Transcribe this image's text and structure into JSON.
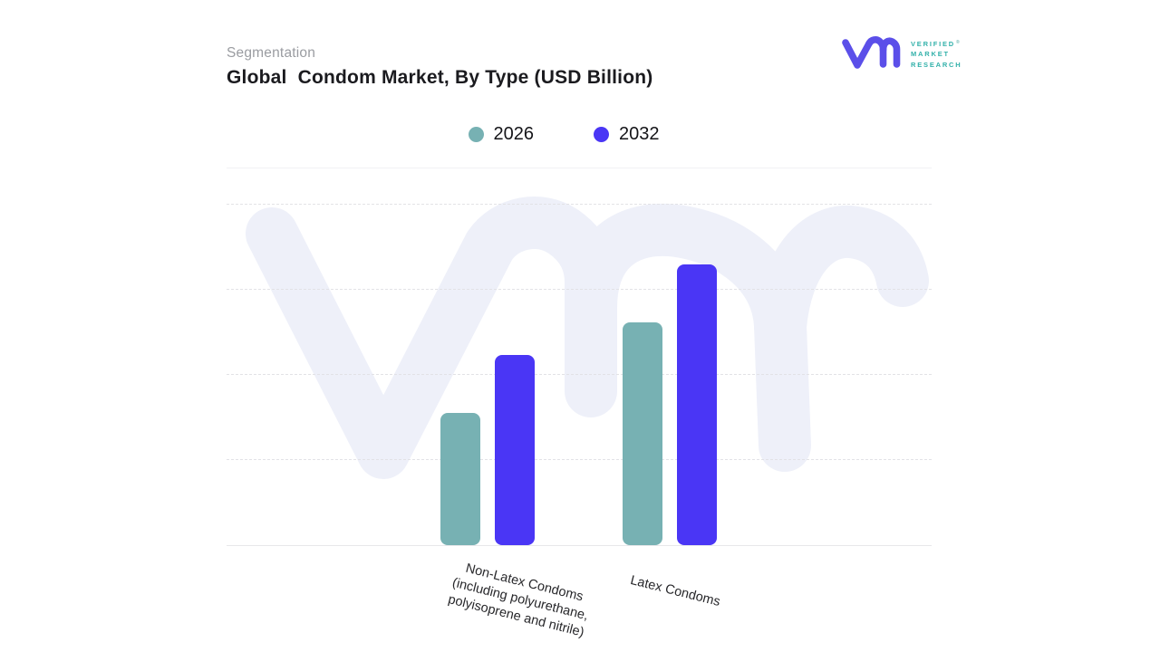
{
  "header": {
    "eyebrow": "Segmentation",
    "title": "Global  Condom Market, By Type (USD Billion)"
  },
  "brand": {
    "lines": [
      "VERIFIED",
      "MARKET",
      "RESEARCH"
    ],
    "registered": "®",
    "logo_color": "#5b4fe9",
    "text_color": "#33b1aa"
  },
  "watermark": {
    "icon": "vmr-watermark",
    "color": "#eef0f9"
  },
  "chart_data": {
    "type": "bar",
    "title": "Global  Condom Market, By Type (USD Billion)",
    "xlabel": "",
    "ylabel": "",
    "units": "USD Billion",
    "categories": [
      "Non-Latex Condoms\n(including polyurethane,\npolyisoprene and nitrile)",
      "Latex Condoms"
    ],
    "series": [
      {
        "name": "2026",
        "color": "#77b1b3",
        "values": [
          1.55,
          2.62
        ]
      },
      {
        "name": "2032",
        "color": "#4a36f5",
        "values": [
          2.24,
          3.3
        ]
      }
    ],
    "ylim": [
      0,
      4.45
    ],
    "gridline_values": [
      1,
      2,
      3,
      4
    ],
    "grid": "dashed-horizontal",
    "y_axis_tick_labels": "none (values estimated from gridline spacing)",
    "legend_position": "top-center"
  }
}
